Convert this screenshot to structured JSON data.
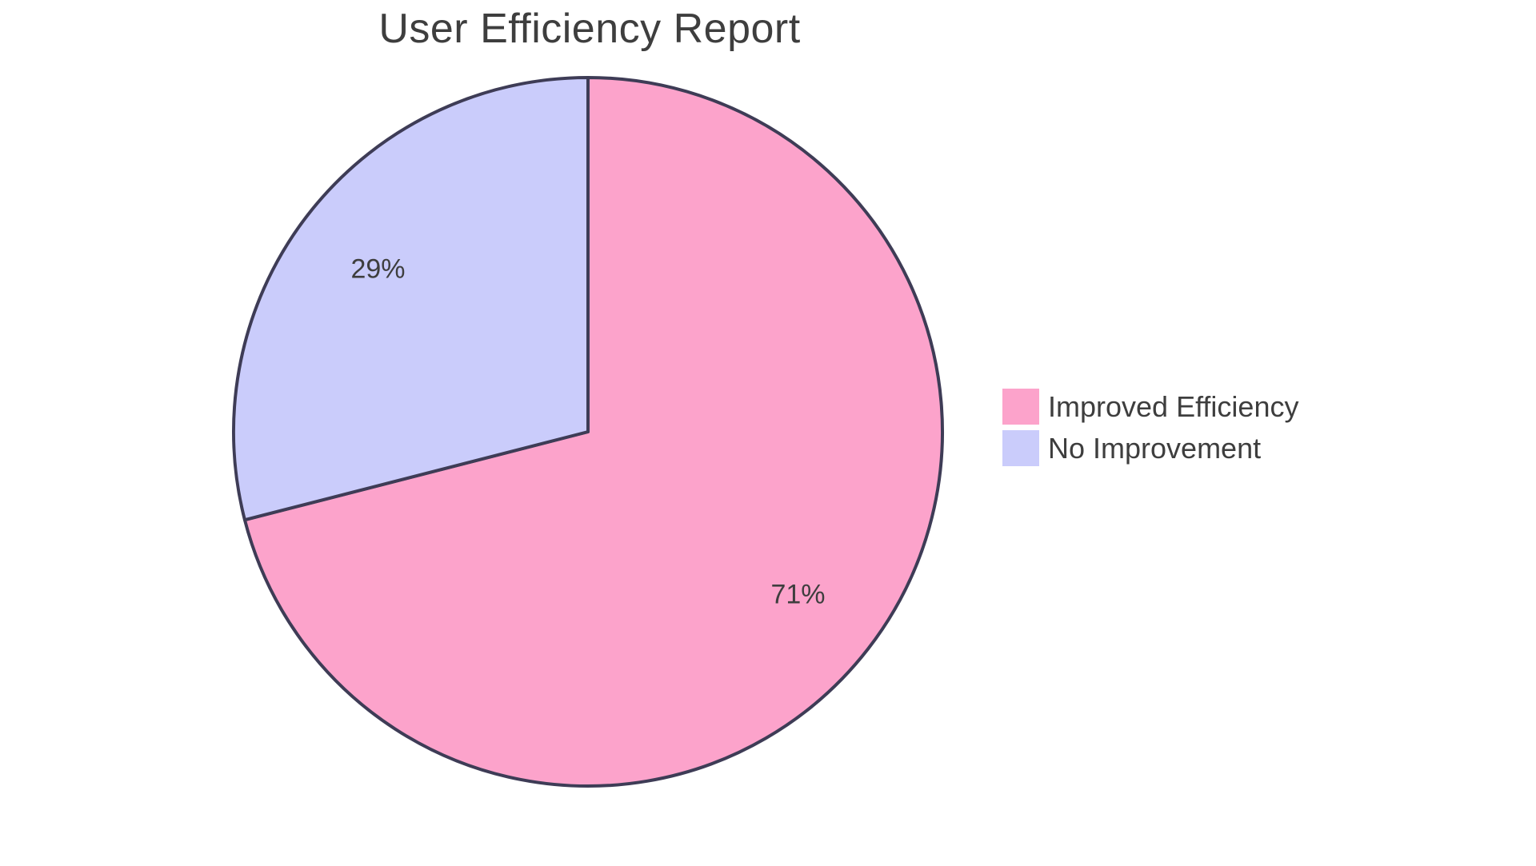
{
  "page": {
    "background_color": "#ffffff"
  },
  "chart_data": {
    "type": "pie",
    "title": "User Efficiency Report",
    "slices": [
      {
        "label": "Improved Efficiency",
        "value": 71,
        "percent_label": "71%",
        "color": "#FCA3CB"
      },
      {
        "label": "No Improvement",
        "value": 29,
        "percent_label": "29%",
        "color": "#CACCFB"
      }
    ],
    "start_angle_deg": 0,
    "direction": "clockwise",
    "stroke_color": "#3E3C56",
    "stroke_width": 4,
    "label_color": "#3e3e3e",
    "title_color": "#3e3e3e",
    "legend_position": "right",
    "grid": false
  }
}
